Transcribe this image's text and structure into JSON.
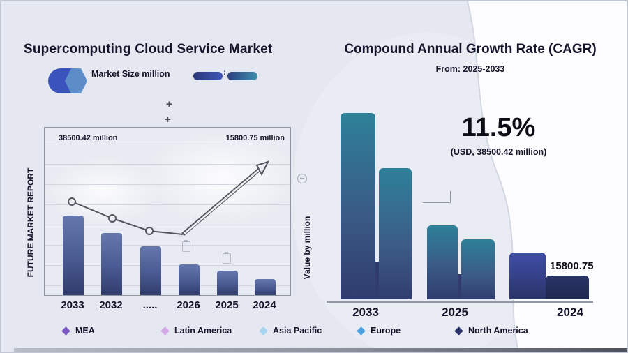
{
  "page": {
    "background_color": "#e5e8f0",
    "accent_navy": "#2b3467",
    "accent_teal": "#2e8099",
    "accent_royal_blue": "#3a53bd"
  },
  "left_section": {
    "title": "Supercomputing Cloud Service Market",
    "icon_label": "Market Size million",
    "pills_separator": ":",
    "plus_mark": "+",
    "chart": {
      "top_left_value": "38500.42 million",
      "top_right_value": "15800.75 million",
      "y_axis_label": "FUTURE MARKET REPORT",
      "right_axis_label": "Value by million",
      "x_labels": [
        "2033",
        "2032",
        ".....",
        "2026",
        "2025",
        "2024"
      ]
    }
  },
  "right_section": {
    "title": "Compound Annual Growth Rate (CAGR)",
    "period": "From: 2025-2033",
    "cagr_value": "11.5%",
    "cagr_detail": "(USD, 38500.42 million)",
    "value_label": "15800.75",
    "x_labels": [
      "2033",
      "2025",
      "2024"
    ]
  },
  "legend": {
    "items": [
      {
        "label": "MEA",
        "color": "#7a56c2"
      },
      {
        "label": "Latin America",
        "color": "#d2a9e6"
      },
      {
        "label": "Asia Pacific",
        "color": "#a5d5ee"
      },
      {
        "label": "Europe",
        "color": "#4b9fe0"
      },
      {
        "label": "North America",
        "color": "#2a3166"
      }
    ]
  },
  "chart_data": [
    {
      "type": "bar",
      "title": "Supercomputing Cloud Service Market — Market Size million",
      "categories": [
        "2033",
        "2032",
        ".....",
        "2026",
        "2025",
        "2024"
      ],
      "relative_heights": [
        1.0,
        0.78,
        0.61,
        0.39,
        0.31,
        0.2
      ],
      "labeled_values": {
        "2033": "38500.42 million",
        "2024": "15800.75 million"
      },
      "values_million_estimated": [
        38500.42,
        34530,
        27000,
        19644,
        17618,
        15800.75
      ],
      "xlabel": "",
      "ylabel": "Value by million",
      "left_axis_caption": "FUTURE MARKET REPORT",
      "grid": true,
      "legend_position": "bottom",
      "overlay": "declining line with 3 circle markers over first three bars, then hollow outlined arrow rising to upper-right"
    },
    {
      "type": "bar",
      "title": "Compound Annual Growth Rate (CAGR) From: 2025-2033",
      "categories": [
        "2033",
        "2025",
        "2024"
      ],
      "series": [
        {
          "name": "primary",
          "relative_heights": [
            1.0,
            0.397,
            0.251
          ]
        },
        {
          "name": "secondary",
          "relative_heights": [
            0.704,
            0.322,
            0.127
          ]
        }
      ],
      "annotation": "15800.75",
      "cagr_percent": 11.5,
      "end_value_million": 38500.42,
      "start_value_million": 15800.75,
      "grid": false,
      "legend_position": "bottom"
    }
  ]
}
